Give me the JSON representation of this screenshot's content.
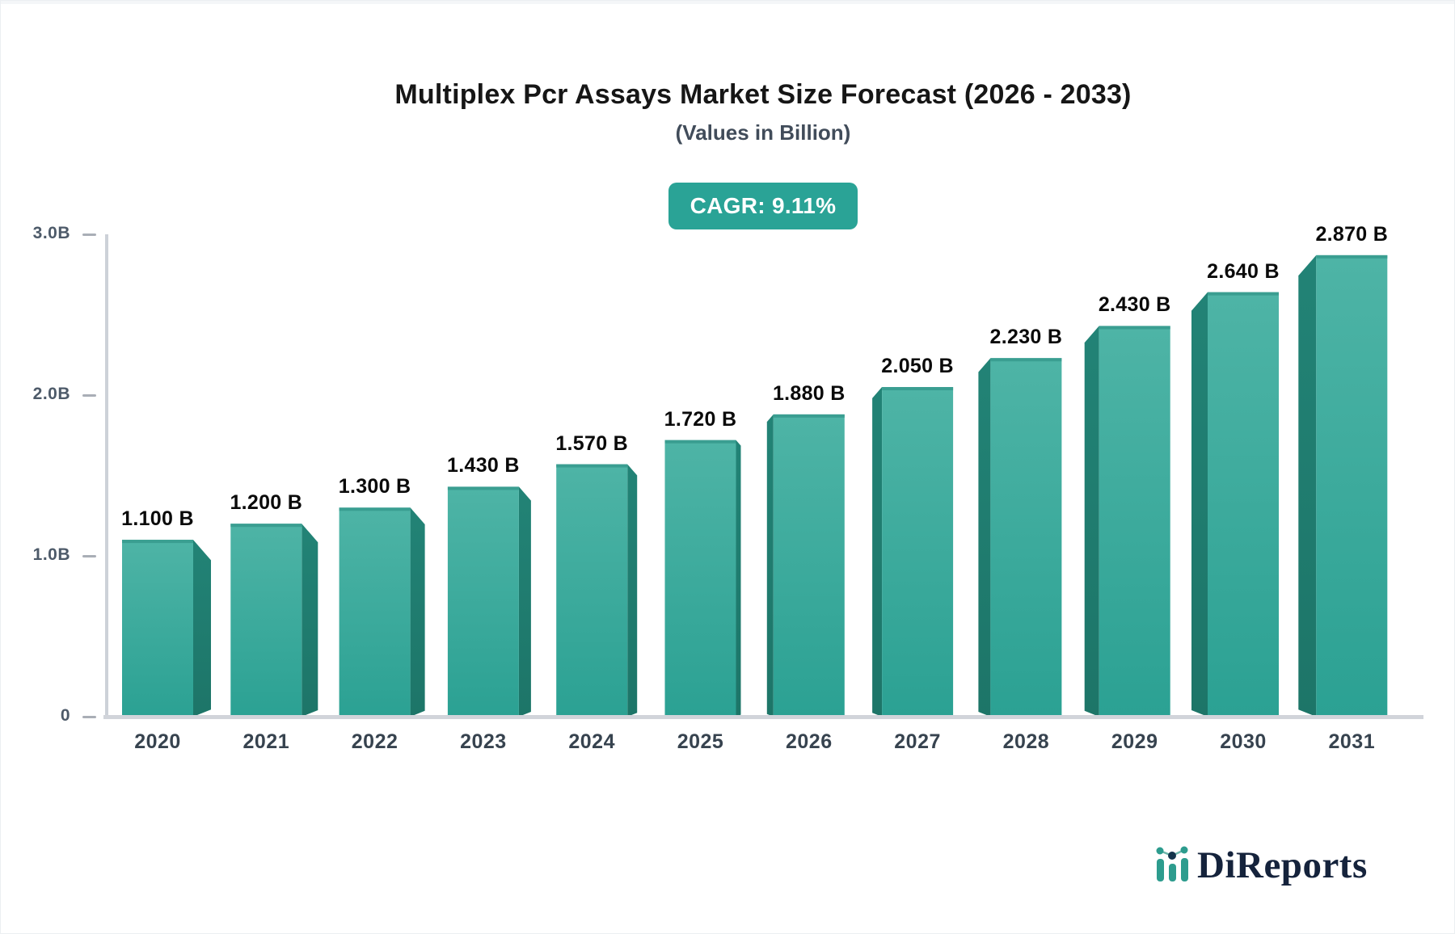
{
  "header": {
    "title": "Multiplex Pcr Assays Market Size Forecast (2026 - 2033)",
    "subtitle": "(Values in Billion)"
  },
  "badge": {
    "label": "CAGR: 9.11%",
    "background": "#2aa396",
    "text_color": "#ffffff"
  },
  "chart_data": {
    "type": "bar",
    "title": "Multiplex Pcr Assays Market Size Forecast (2026 - 2033)",
    "subtitle": "(Values in Billion)",
    "categories": [
      "2020",
      "2021",
      "2022",
      "2023",
      "2024",
      "2025",
      "2026",
      "2027",
      "2028",
      "2029",
      "2030",
      "2031"
    ],
    "values": [
      1.1,
      1.2,
      1.3,
      1.43,
      1.57,
      1.72,
      1.88,
      2.05,
      2.23,
      2.43,
      2.64,
      2.87
    ],
    "value_labels": [
      "1.100 B",
      "1.200 B",
      "1.300 B",
      "1.430 B",
      "1.570 B",
      "1.720 B",
      "1.880 B",
      "2.050 B",
      "2.230 B",
      "2.430 B",
      "2.640 B",
      "2.870 B"
    ],
    "y_ticks": [
      {
        "label": "3.0B",
        "value": 3.0
      },
      {
        "label": "2.0B",
        "value": 2.0
      },
      {
        "label": "1.0B",
        "value": 1.0
      },
      {
        "label": "0",
        "value": 0.0
      }
    ],
    "ylim": [
      0,
      3.0
    ],
    "grid": false,
    "legend": "none",
    "style": "3d-perspective-bars",
    "colors": {
      "bar_front_top": "#4eb4a6",
      "bar_front_bottom": "#2ba193",
      "bar_side_top": "#228376",
      "bar_side_bottom": "#1d7568",
      "bar_bevel": "#3a9e91",
      "axis_line": "#cdd1d8",
      "baseline": "#d1d4da"
    }
  },
  "logo": {
    "text": "DiReports",
    "icon": "bar-chart-trend-icon",
    "text_color": "#15233c",
    "teal": "#2d9c8e",
    "navy": "#14344c"
  }
}
